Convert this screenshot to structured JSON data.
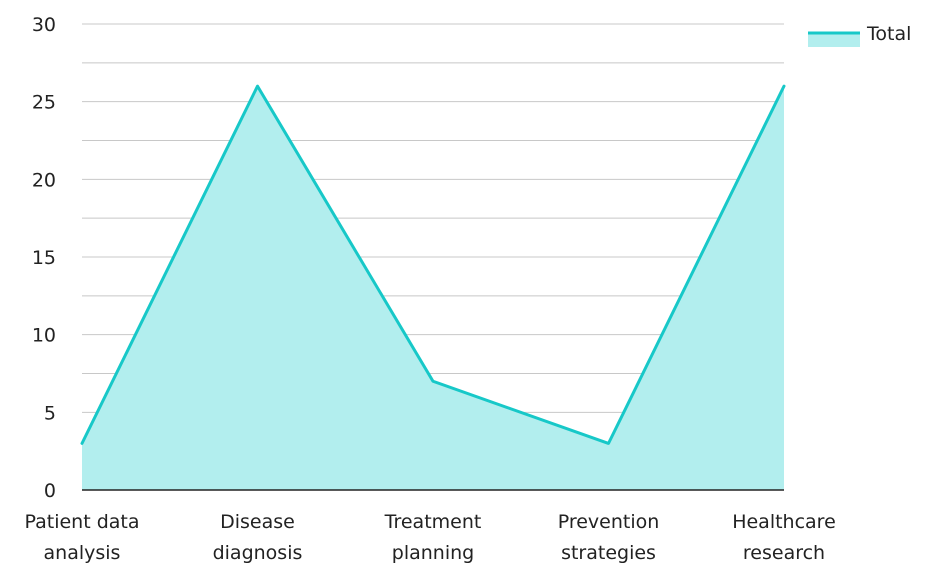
{
  "chart_data": {
    "type": "area",
    "categories": [
      [
        "Patient data",
        "analysis"
      ],
      [
        "Disease",
        "diagnosis"
      ],
      [
        "Treatment",
        "planning"
      ],
      [
        "Prevention",
        "strategies"
      ],
      [
        "Healthcare",
        "research"
      ]
    ],
    "series": [
      {
        "name": "Total",
        "values": [
          3,
          26,
          7,
          3,
          26
        ],
        "line_color": "#17c8c8",
        "fill_color": "#b2eeee"
      }
    ],
    "y_ticks": [
      "0",
      "5",
      "10",
      "15",
      "20",
      "25",
      "30"
    ],
    "ylim": [
      0,
      30
    ],
    "grid": true,
    "legend": "top-right",
    "colors": {
      "grid": "#c8c8c8",
      "axis": "#222222",
      "text": "#222222"
    }
  }
}
